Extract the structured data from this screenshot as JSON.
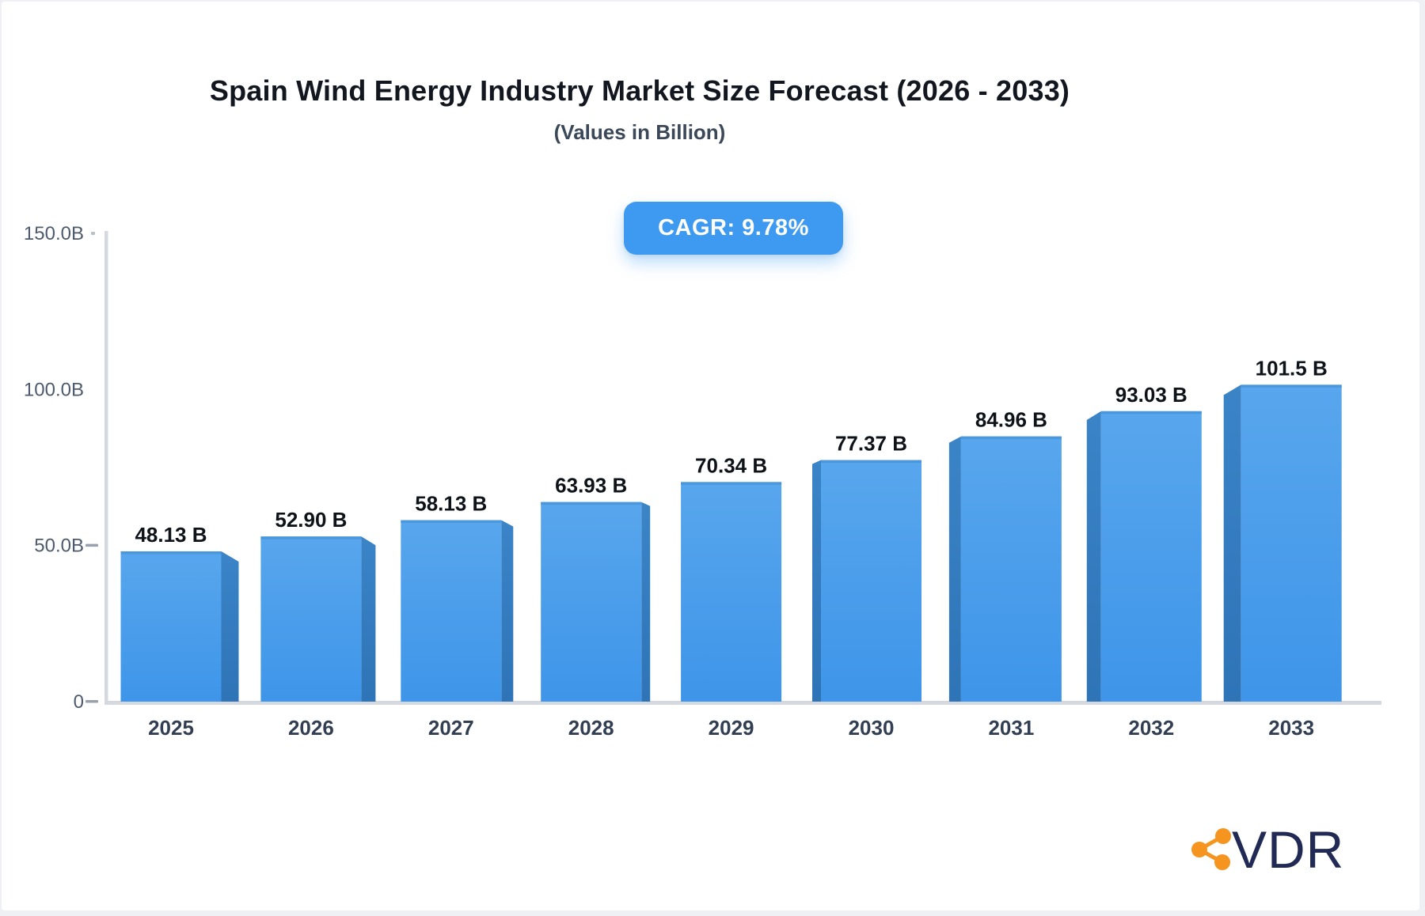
{
  "header": {
    "title": "Spain Wind Energy Industry Market Size Forecast (2026 - 2033)",
    "subtitle": "(Values in Billion)"
  },
  "badge": {
    "label": "CAGR: 9.78%",
    "background": "#3D9AF0"
  },
  "chart_data": {
    "type": "bar",
    "title": "Spain Wind Energy Industry Market Size Forecast (2026 - 2033)",
    "subtitle": "(Values in Billion)",
    "categories": [
      "2025",
      "2026",
      "2027",
      "2028",
      "2029",
      "2030",
      "2031",
      "2032",
      "2033"
    ],
    "values": [
      48.13,
      52.9,
      58.13,
      63.93,
      70.34,
      77.37,
      84.96,
      93.03,
      101.5
    ],
    "bar_labels": [
      "48.13 B",
      "52.90 B",
      "58.13 B",
      "63.93 B",
      "70.34 B",
      "77.37 B",
      "84.96 B",
      "93.03 B",
      "101.5 B"
    ],
    "xlabel": "",
    "ylabel": "",
    "ylim": [
      0,
      150
    ],
    "grid": false,
    "legend": false,
    "y_ticks": [
      {
        "value": 150,
        "label": "150.0B",
        "mark": "dot"
      },
      {
        "value": 100,
        "label": "100.0B",
        "mark": "none"
      },
      {
        "value": 50,
        "label": "50.0B",
        "mark": "dash"
      },
      {
        "value": 0,
        "label": "0",
        "mark": "dash"
      }
    ],
    "colors": {
      "face_top": "#58A6ED",
      "face_bottom": "#3E95E9",
      "face_edge": "#4B97DC",
      "side_top": "#3A84C7",
      "side_bottom": "#2E74B7",
      "axis": "#D5D9DF",
      "tick": "#99A1AC",
      "value_label": "#0E1219",
      "year_label": "#323E52",
      "y_tick_label": "#4E5B6E"
    }
  },
  "logo": {
    "text": "VDR",
    "orange": "#F5941F",
    "navy": "#202A55"
  }
}
